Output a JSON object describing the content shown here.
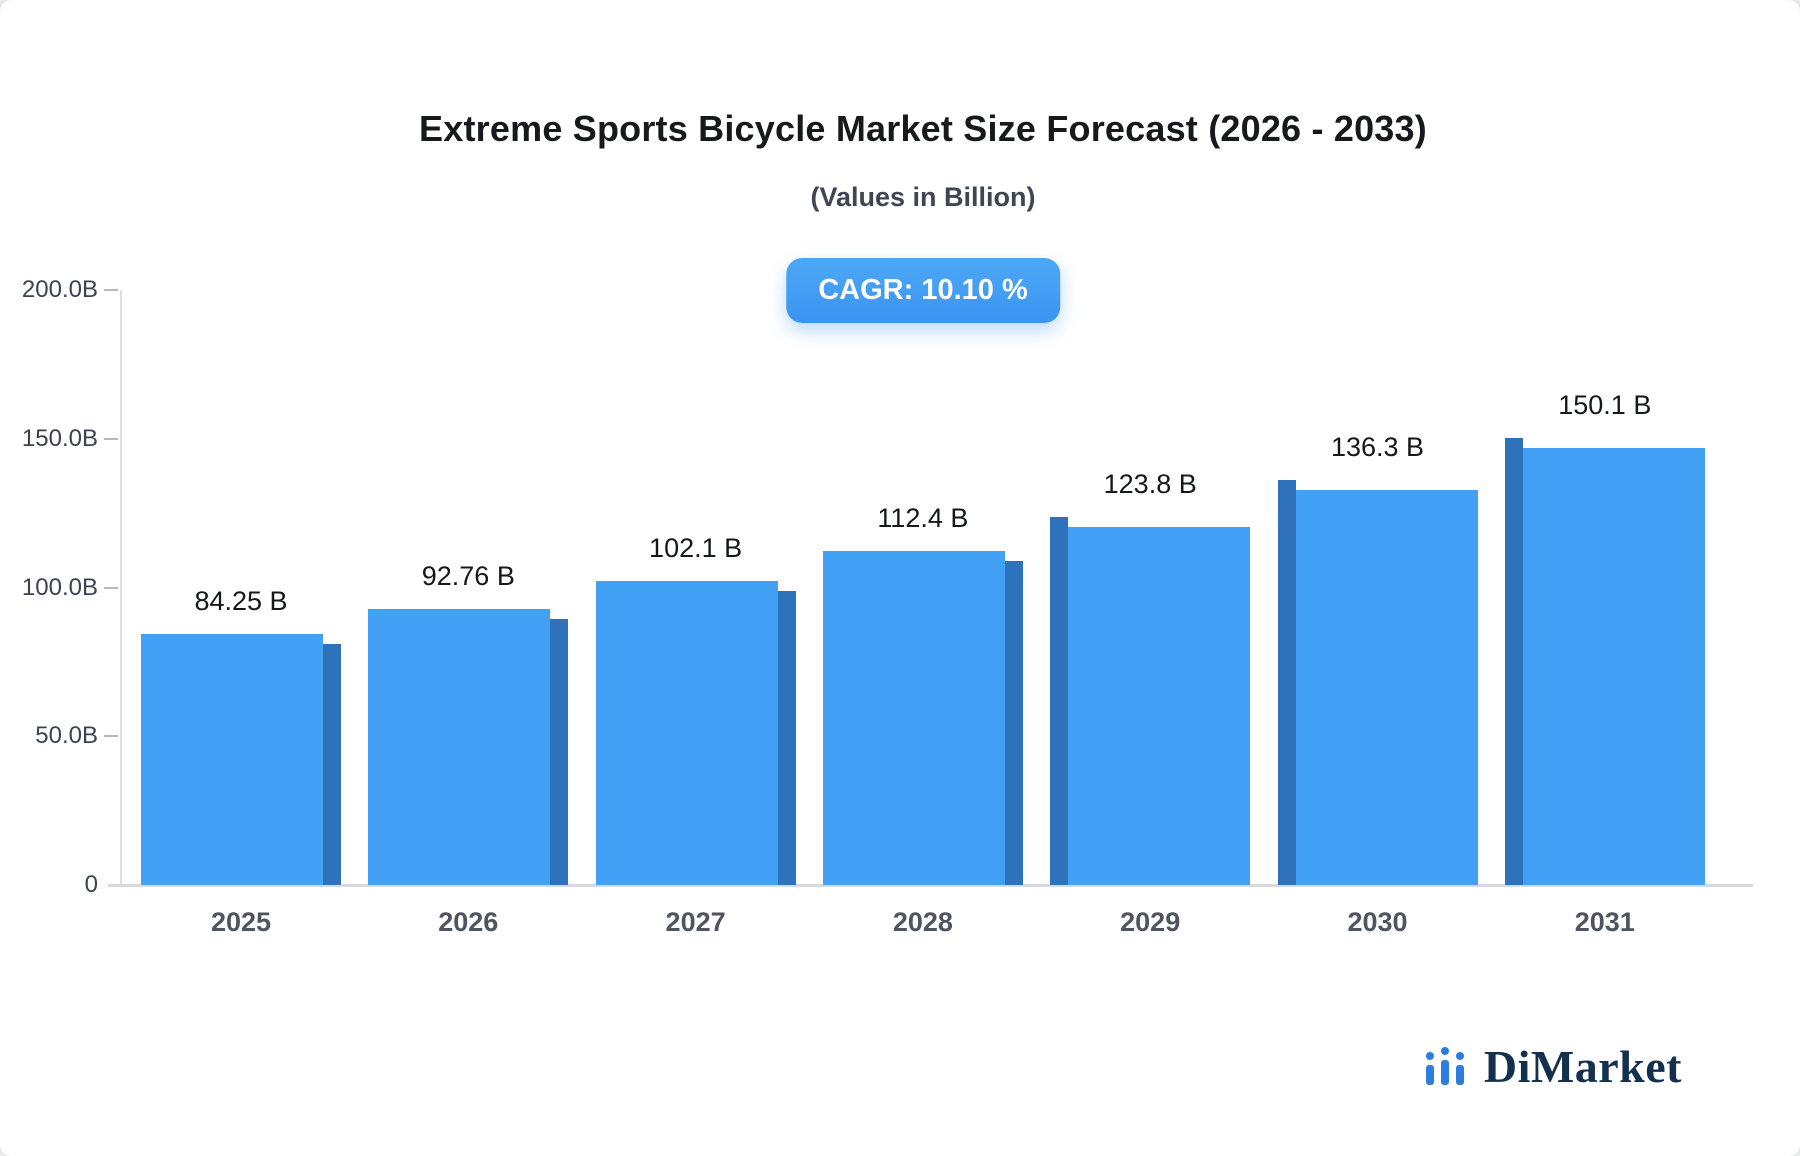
{
  "title": "Extreme Sports Bicycle Market Size Forecast (2026 - 2033)",
  "subtitle": "(Values in Billion)",
  "cagr_label": "CAGR: 10.10 %",
  "brand": {
    "name": "DiMarket"
  },
  "chart_data": {
    "type": "bar",
    "title": "Extreme Sports Bicycle Market Size Forecast (2026 - 2033)",
    "xlabel": "",
    "ylabel": "",
    "categories": [
      "2025",
      "2026",
      "2027",
      "2028",
      "2029",
      "2030",
      "2031"
    ],
    "values": [
      84.25,
      92.76,
      102.1,
      112.4,
      123.8,
      136.3,
      150.1
    ],
    "value_labels": [
      "84.25 B",
      "92.76 B",
      "102.1 B",
      "112.4 B",
      "123.8 B",
      "136.3 B",
      "150.1 B"
    ],
    "ylim": [
      0,
      200
    ],
    "yticks": [
      200,
      150,
      100,
      50,
      0
    ],
    "ytick_labels": [
      "200.0B",
      "150.0B",
      "100.0B",
      "50.0B",
      "0"
    ],
    "grid": "off",
    "legend": "none",
    "bar_color": "#42A0F5",
    "bar_side_color": "#2D72BB",
    "accent_color": "#3B94F0",
    "cagr_value": "10.10 %"
  }
}
